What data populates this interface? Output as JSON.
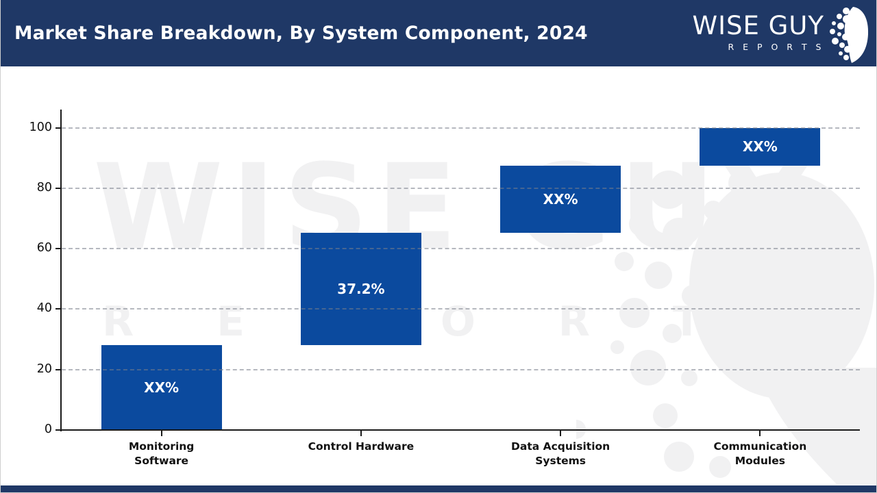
{
  "header": {
    "title": "Market Share Breakdown, By System Component, 2024",
    "logo": {
      "line1": "WISE GUY",
      "line2": "R E P O R T S"
    }
  },
  "watermark": {
    "line1": "WISE GUY",
    "line2": "R E P O R T S"
  },
  "chart_data": {
    "type": "bar",
    "subtype": "waterfall-floating-bars",
    "title": "Market Share Breakdown, By System Component, 2024",
    "categories": [
      "Monitoring Software",
      "Control Hardware",
      "Data Acquisition Systems",
      "Communication Modules"
    ],
    "categories_lines": [
      [
        "Monitoring",
        "Software"
      ],
      [
        "Control Hardware"
      ],
      [
        "Data Acquisition",
        "Systems"
      ],
      [
        "Communication",
        "Modules"
      ]
    ],
    "bar_ranges": [
      [
        0,
        28
      ],
      [
        28,
        65.2
      ],
      [
        65.2,
        87.5
      ],
      [
        87.5,
        100
      ]
    ],
    "values": [
      28,
      37.2,
      22.3,
      12.5
    ],
    "bar_labels": [
      "XX%",
      "37.2%",
      "XX%",
      "XX%"
    ],
    "xlabel": "",
    "ylabel": "",
    "ylim": [
      0,
      100
    ],
    "yticks": [
      0,
      20,
      40,
      60,
      80,
      100
    ],
    "grid": "horizontal-dashed",
    "legend": "none",
    "bar_color": "#0b4a9e",
    "bar_label_color": "#ffffff",
    "header_color": "#1f3866",
    "watermark_color": "#f1f1f2"
  }
}
